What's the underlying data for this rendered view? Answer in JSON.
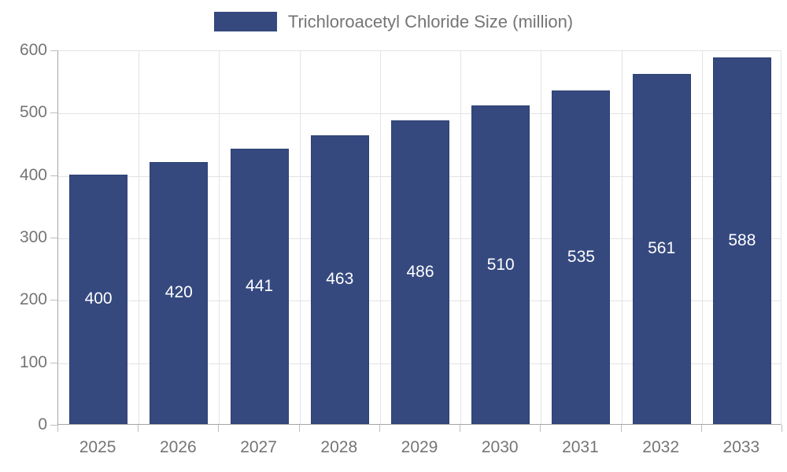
{
  "chart_data": {
    "type": "bar",
    "title": "",
    "legend": "Trichloroacetyl Chloride Size (million)",
    "legend_position": "top",
    "categories": [
      "2025",
      "2026",
      "2027",
      "2028",
      "2029",
      "2030",
      "2031",
      "2032",
      "2033"
    ],
    "series": [
      {
        "name": "Trichloroacetyl Chloride Size (million)",
        "values": [
          400,
          420,
          441,
          463,
          486,
          510,
          535,
          561,
          588
        ]
      }
    ],
    "data_labels": [
      "400",
      "420",
      "441",
      "463",
      "486",
      "510",
      "535",
      "561",
      "588"
    ],
    "xlabel": "",
    "ylabel": "",
    "ylim": [
      0,
      600
    ],
    "yticks": [
      0,
      100,
      200,
      300,
      400,
      500,
      600
    ],
    "grid": true
  },
  "colors": {
    "bar": "#35497F",
    "bar_border": "#2E4173",
    "axis_text": "#757575",
    "value_label": "#ffffff",
    "gridline": "#e3e3e3",
    "axis_line": "#a6a6a6"
  }
}
